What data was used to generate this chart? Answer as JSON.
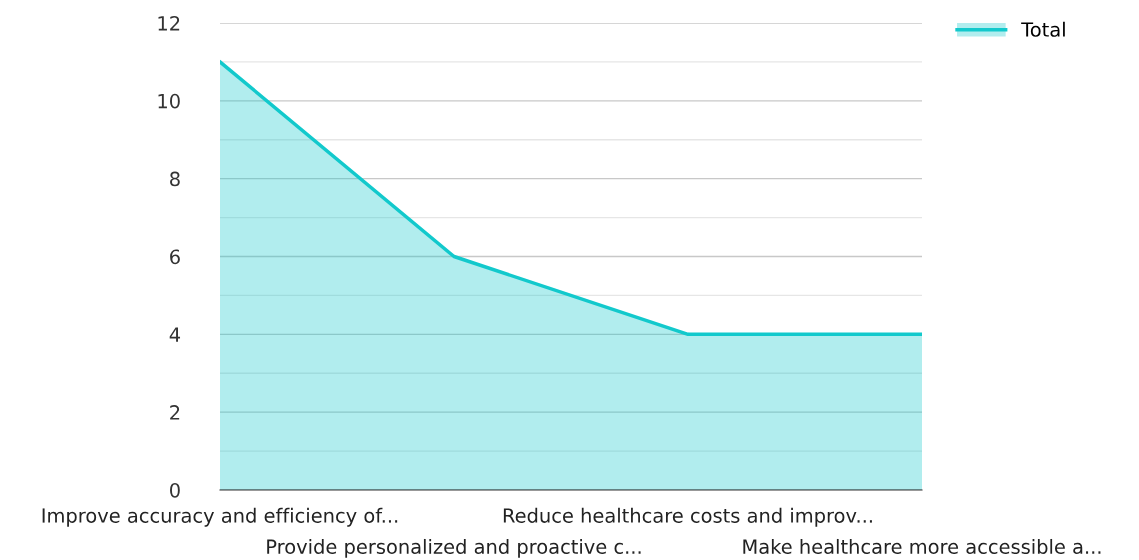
{
  "chart_data": {
    "type": "area",
    "categories": [
      "Improve accuracy and efficiency of...",
      "Provide personalized and proactive c...",
      "Reduce healthcare costs and improv...",
      "Make healthcare more accessible a..."
    ],
    "series": [
      {
        "name": "Total",
        "color": "#12c9cc",
        "values": [
          11,
          6,
          4,
          4
        ]
      }
    ],
    "ylim": [
      0,
      12
    ],
    "yticks": [
      0,
      {
        "value": 1,
        "label": null
      },
      2,
      {
        "value": 3,
        "label": null
      },
      4,
      {
        "value": 5,
        "label": null
      },
      6,
      {
        "value": 7,
        "label": null
      },
      8,
      {
        "value": 9,
        "label": null
      },
      10,
      {
        "value": 11,
        "label": null
      },
      12
    ],
    "grid": "y",
    "legend": "top right"
  }
}
